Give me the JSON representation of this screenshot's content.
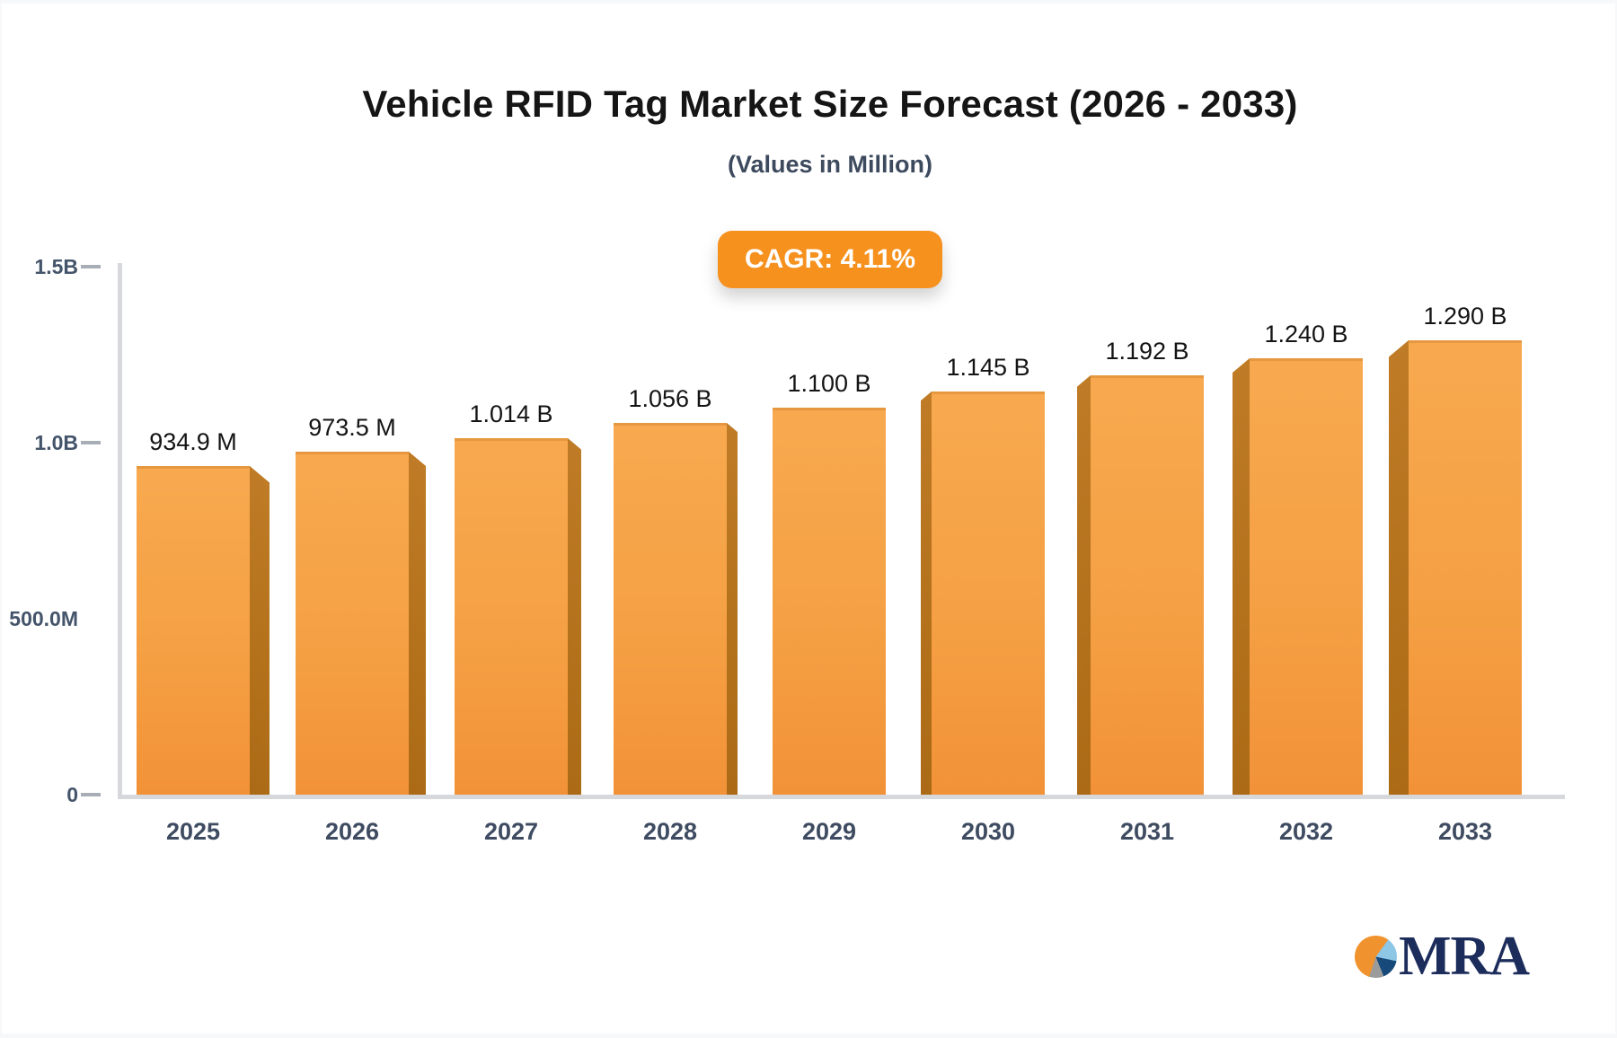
{
  "page": {
    "background": "#f7f8fa",
    "card_background": "#ffffff"
  },
  "header": {
    "title": "Vehicle RFID Tag Market Size Forecast (2026 - 2033)",
    "subtitle": "(Values in Million)"
  },
  "badge": {
    "label": "CAGR: 4.11%",
    "color": "#f6911e"
  },
  "chart_data": {
    "type": "bar",
    "title": "Vehicle RFID Tag Market Size Forecast (2026 - 2033)",
    "subtitle": "(Values in Million)",
    "annotation": "CAGR: 4.11%",
    "categories": [
      "2025",
      "2026",
      "2027",
      "2028",
      "2029",
      "2030",
      "2031",
      "2032",
      "2033"
    ],
    "values_millions": [
      934.9,
      973.5,
      1014,
      1056,
      1100,
      1145,
      1192,
      1240,
      1290
    ],
    "bar_labels": [
      "934.9 M",
      "973.5 M",
      "1.014 B",
      "1.056 B",
      "1.100 B",
      "1.145 B",
      "1.192 B",
      "1.240 B",
      "1.290 B"
    ],
    "y_ticks": [
      {
        "label": "1.5B",
        "value": 1500,
        "dash": true
      },
      {
        "label": "1.0B",
        "value": 1000,
        "dash": true
      },
      {
        "label": "500.0M",
        "value": 500,
        "dash": false
      },
      {
        "label": "0",
        "value": 0,
        "dash": true
      }
    ],
    "ylim": [
      0,
      1500
    ],
    "grid": false,
    "legend": false,
    "bar_color_top": "#f8a94f",
    "bar_color_bottom": "#f29238",
    "bar_side_color": "#b4701d",
    "axis_color": "#d6d8dc",
    "label_color": "#141414"
  },
  "logo": {
    "text": "MRA",
    "pie_colors": [
      "#f0932e",
      "#8ec6e6",
      "#17497a",
      "#9b9b9b"
    ],
    "text_color": "#1c2c5b"
  }
}
